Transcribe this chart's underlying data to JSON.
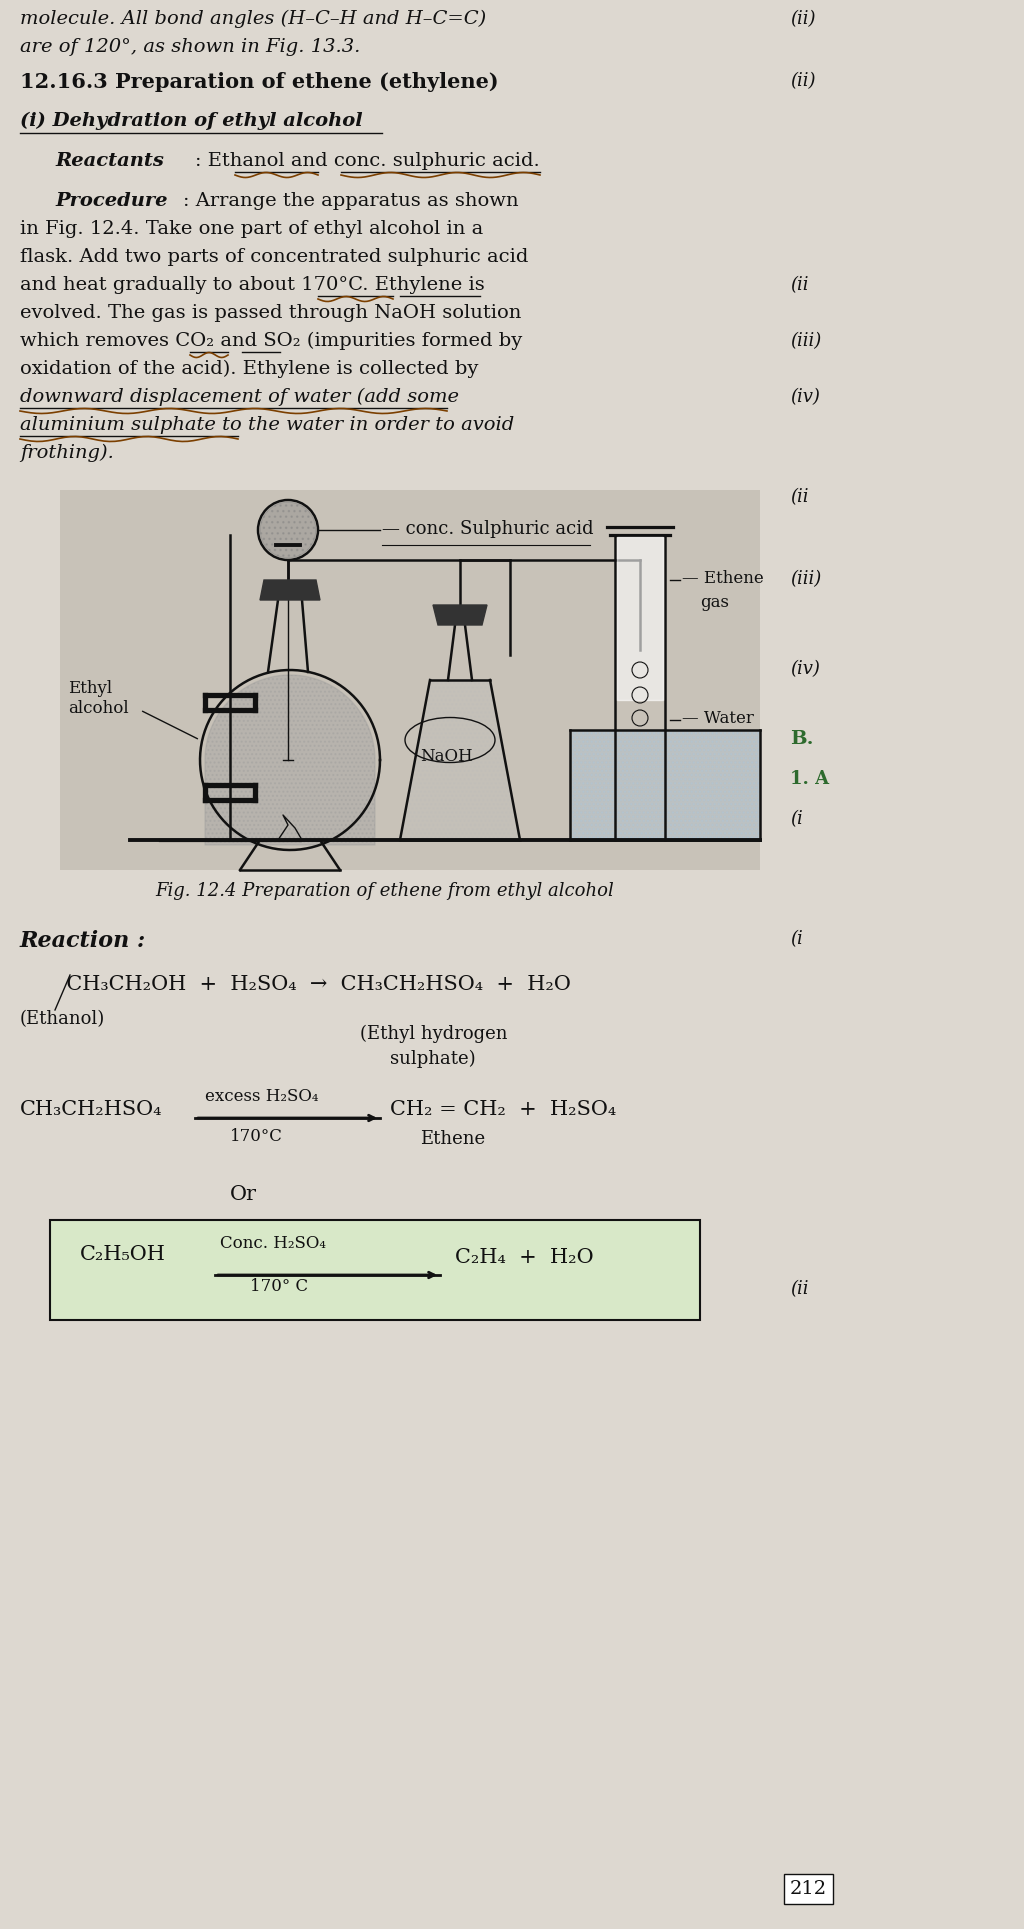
{
  "bg_color": "#cfc8be",
  "page_bg": "#ddd8d0",
  "text_color": "#1a1a1a",
  "page_width": 10.24,
  "page_height": 19.29,
  "top_text_1": "molecule. All bond angles (H–C–H and H–C=C)",
  "top_text_2": "are of 120°, as shown in Fig. 13.3.",
  "heading": "12.16.3 Preparation of ethene (ethylene)",
  "subheading": "(i) Dehydration of ethyl alcohol",
  "fig_caption": "Fig. 12.4 Preparation of ethene from ethyl alcohol",
  "reaction_label": "Reaction :",
  "page_num": "212",
  "diag_bg": "#d0cbc4"
}
